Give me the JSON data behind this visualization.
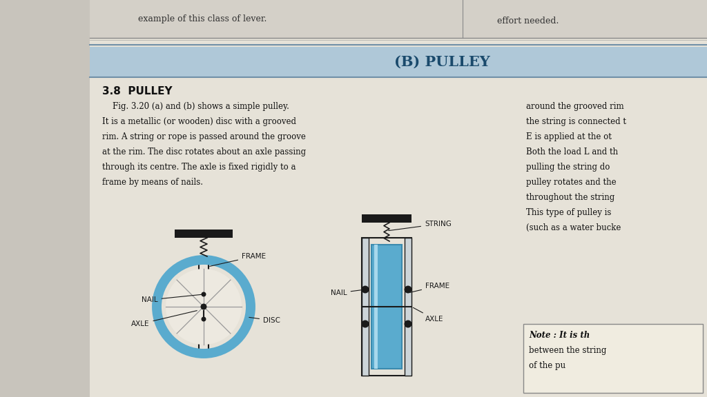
{
  "bg_color": "#c8c4bc",
  "page_bg": "#e6e2d8",
  "header_bg": "#afc8d8",
  "header_text": "(B) PULLEY",
  "header_text_color": "#1a4a6c",
  "section_title": "3.8  PULLEY",
  "section_title_color": "#111111",
  "top_left_text": "example of this class of lever.",
  "top_right_text": "effort needed.",
  "body_left_lines": [
    "    Fig. 3.20 (a) and (b) shows a simple pulley.",
    "It is a metallic (or wooden) disc with a grooved",
    "rim. A string or rope is passed around the groove",
    "at the rim. The disc rotates about an axle passing",
    "through its centre. The axle is fixed rigidly to a",
    "frame by means of nails."
  ],
  "body_right_lines": [
    "around the grooved rim",
    "the string is connected t",
    "E is applied at the ot",
    "Both the load L and th",
    "pulling the string do",
    "pulley rotates and the",
    "throughout the string ",
    "This type of pulley is",
    "(such as a water bucke"
  ],
  "note_lines": [
    "Note : It is th",
    "between the string ",
    "of the pu"
  ],
  "pulley_blue": "#5aabce",
  "dark": "#1a1a1a",
  "frame_fill": "#e6e2d8",
  "label_fs": 7.5,
  "body_fs": 8.5,
  "note_bg": "#f0ece0"
}
